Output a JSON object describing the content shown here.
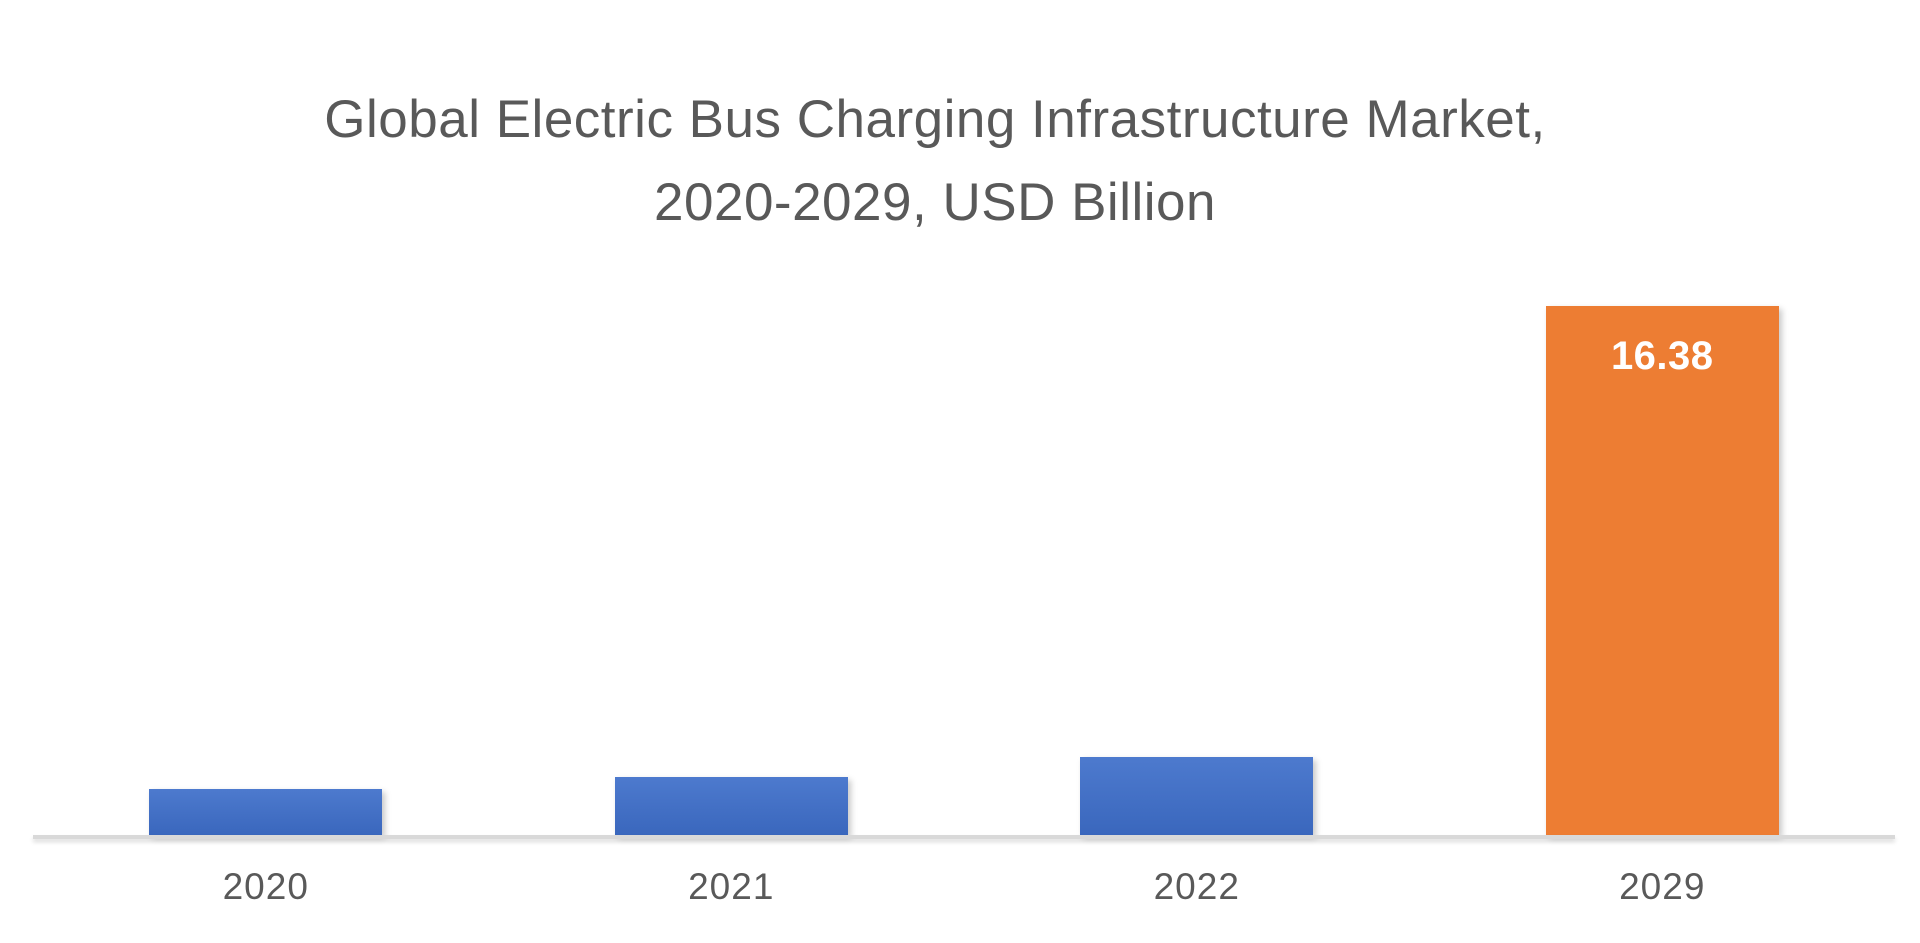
{
  "chart": {
    "title_line1": "Global Electric Bus Charging Infrastructure Market,",
    "title_line2": "2020-2029, USD Billion",
    "title_color": "#595959"
  },
  "chart_data": {
    "type": "bar",
    "title": "Global Electric Bus Charging Infrastructure Market, 2020-2029, USD Billion",
    "xlabel": "",
    "ylabel": "",
    "unit": "USD Billion",
    "categories": [
      "2020",
      "2021",
      "2022",
      "2029"
    ],
    "values": [
      1.42,
      1.8,
      2.4,
      16.38
    ],
    "value_labels": [
      "",
      "",
      "",
      "16.38"
    ],
    "bar_colors": [
      "#4472C4",
      "#4472C4",
      "#4472C4",
      "#ED7D33"
    ],
    "value_label_color": "#FFFFFF",
    "ylim": [
      0,
      16.9
    ],
    "grid": false,
    "legend": false,
    "axis_line_color": "#D9D9D9",
    "tick_label_color": "#595959",
    "notes": "Only the 2029 bar carries a printed data label (16.38); 2020-2022 values are estimated from bar heights."
  }
}
